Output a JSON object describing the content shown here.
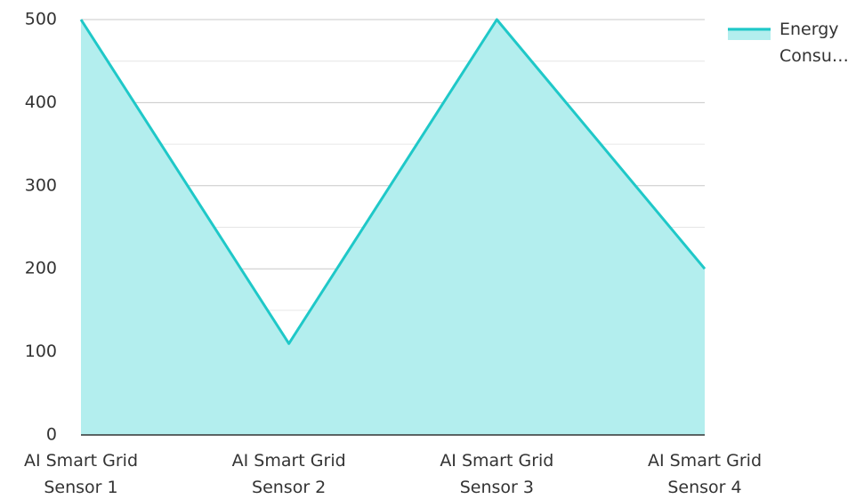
{
  "chart_data": {
    "type": "area",
    "categories": [
      "AI Smart Grid Sensor 1",
      "AI Smart Grid Sensor 2",
      "AI Smart Grid Sensor 3",
      "AI Smart Grid Sensor 4"
    ],
    "series": [
      {
        "name": "Energy Consu…",
        "color": "#1fc8c8",
        "fill": "#b3eeee",
        "values": [
          500,
          110,
          500,
          200
        ]
      }
    ],
    "ylim": [
      0,
      500
    ],
    "yticks": [
      0,
      100,
      200,
      300,
      400,
      500
    ],
    "minor_yticks": [
      50,
      150,
      250,
      350,
      450
    ],
    "grid": true,
    "legend": "top-right"
  }
}
